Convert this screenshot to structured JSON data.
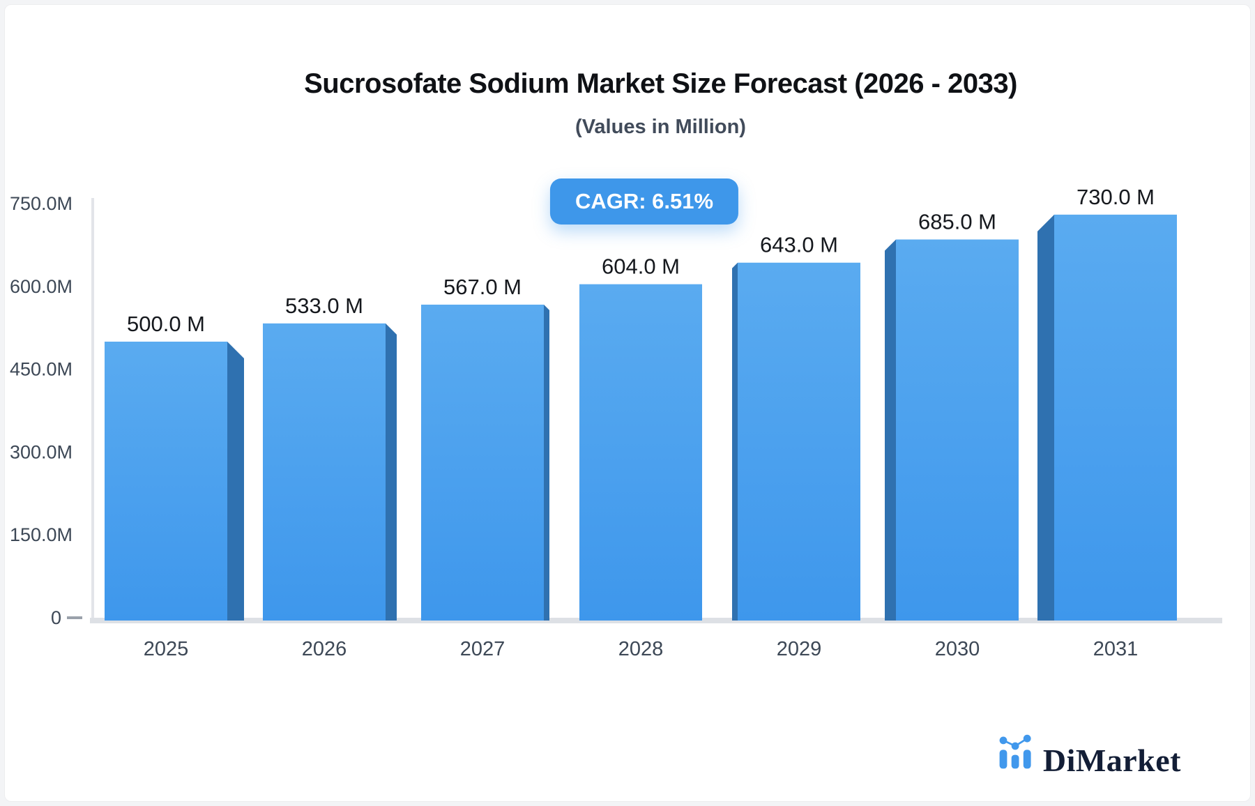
{
  "title": "Sucrosofate Sodium Market Size Forecast (2026 - 2033)",
  "subtitle": "(Values in Million)",
  "cagr_label": "CAGR: 6.51%",
  "chart_data": {
    "type": "bar",
    "title": "Sucrosofate Sodium Market Size Forecast (2026 - 2033)",
    "subtitle": "(Values in Million)",
    "unit": "Million",
    "cagr_percent": 6.51,
    "categories": [
      "2025",
      "2026",
      "2027",
      "2028",
      "2029",
      "2030",
      "2031"
    ],
    "values": [
      500,
      533,
      567,
      604,
      643,
      685,
      730
    ],
    "value_labels": [
      "500.0 M",
      "533.0 M",
      "567.0 M",
      "604.0 M",
      "643.0 M",
      "685.0 M",
      "730.0 M"
    ],
    "y_ticks": [
      {
        "value": 750,
        "label": "750.0M"
      },
      {
        "value": 600,
        "label": "600.0M"
      },
      {
        "value": 450,
        "label": "450.0M"
      },
      {
        "value": 300,
        "label": "300.0M"
      },
      {
        "value": 150,
        "label": "150.0M"
      },
      {
        "value": 0,
        "label": "0"
      }
    ],
    "ylim": [
      0,
      750
    ],
    "grid": false,
    "legend": "none",
    "style": {
      "bar_top": "#5aabf0",
      "bar_bottom": "#3e97ec",
      "bar_side": "#2f71b0",
      "axis": "#e2e4e9",
      "baseline": "#dde0e5",
      "tick_mark": "#9aa1ab",
      "tick_text": "#3d4856",
      "value_text": "#15181d"
    }
  },
  "colors": {
    "badge_bg": "#3e97ea",
    "title_text": "#0f1115",
    "subtitle_text": "#414b5a"
  },
  "branding": {
    "logo_text": "DiMarket",
    "logo_icon": "mini-bar-line-chart-icon",
    "logo_color": "#4198ec",
    "logo_text_color": "#131e36"
  }
}
